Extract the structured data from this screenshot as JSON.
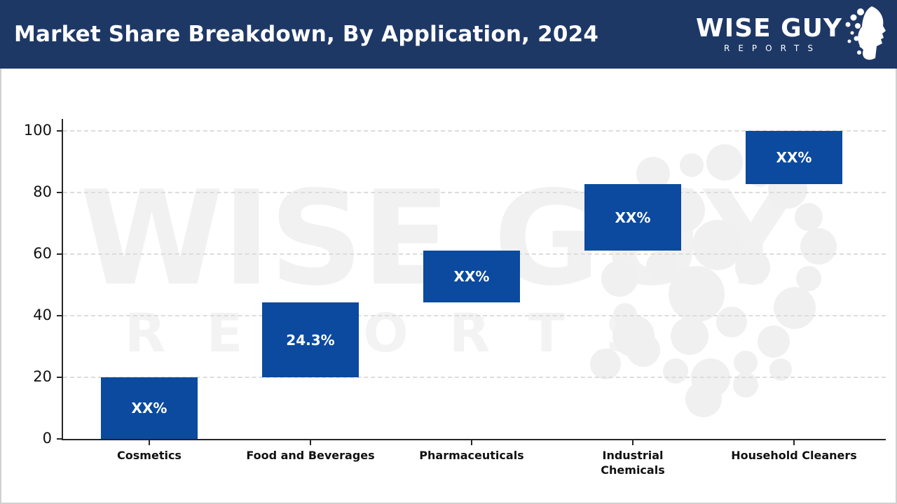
{
  "header": {
    "title": "Market Share Breakdown, By Application, 2024",
    "logo": {
      "name": "WISE GUY",
      "subtitle": "REPORTS"
    }
  },
  "watermark": {
    "line1": "WISE GUY",
    "line2": "REPORTS"
  },
  "style": {
    "header_bg": "#1e3866",
    "bar_color": "#0b4a9e",
    "bar_label_color": "#ffffff",
    "grid_color": "#dcdcdc",
    "axis_color": "#262626",
    "watermark_color": "#f1f1f1",
    "page_border_color": "#d0d0d0"
  },
  "chart_data": {
    "type": "bar",
    "subtype": "waterfall",
    "title": "Market Share Breakdown, By Application, 2024",
    "categories": [
      "Cosmetics",
      "Food and Beverages",
      "Pharmaceuticals",
      "Industrial Chemicals",
      "Household Cleaners"
    ],
    "xtick_labels": [
      "Cosmetics",
      "Food and Beverages",
      "Pharmaceuticals",
      "Industrial\nChemicals",
      "Household Cleaners"
    ],
    "series": [
      {
        "segment_start": [
          0,
          20,
          44.3,
          61.1,
          82.7
        ],
        "segment_end": [
          20,
          44.3,
          61.1,
          82.7,
          100
        ],
        "values": [
          20,
          24.3,
          16.8,
          21.6,
          17.3
        ]
      }
    ],
    "bar_labels": [
      "XX%",
      "24.3%",
      "XX%",
      "XX%",
      "XX%"
    ],
    "yticks": [
      0,
      20,
      40,
      60,
      80,
      100
    ],
    "ylim": [
      0,
      104
    ],
    "xlabel": "",
    "ylabel": "",
    "grid": {
      "horizontal": true,
      "style": "dashed"
    },
    "legend": null,
    "bar_color": "#0b4a9e",
    "bar_label_color": "#ffffff"
  }
}
